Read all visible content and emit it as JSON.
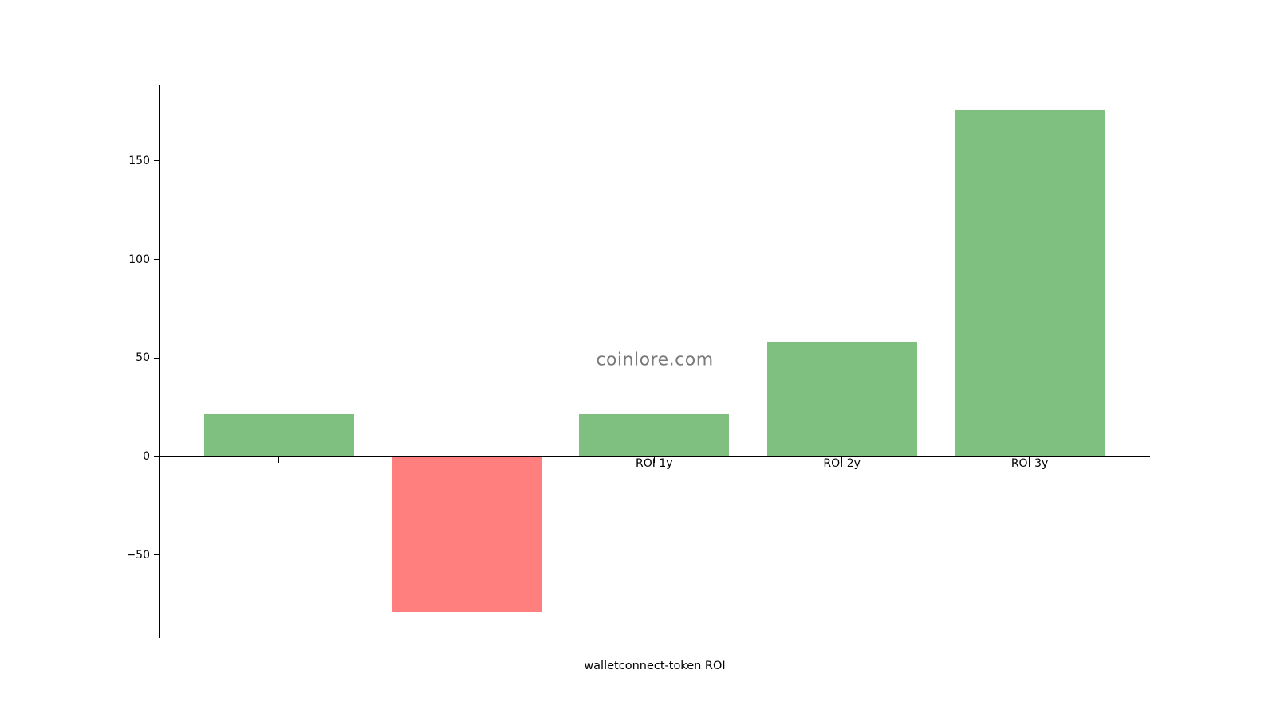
{
  "page": {
    "background": "#ffffff"
  },
  "watermark": {
    "text": "coinlore.com",
    "color": "#7a7a7a"
  },
  "chart_data": {
    "type": "bar",
    "title": "",
    "xlabel": "walletconnect-token ROI",
    "ylabel": "",
    "categories": [
      "",
      "",
      "ROI 1y",
      "ROI 2y",
      "ROI 3y"
    ],
    "values": [
      21.4,
      -78.6,
      21.4,
      58.1,
      175.8
    ],
    "positive_color": "#7fbf7f",
    "negative_color": "#ff7f7f",
    "axis_color": "#000000",
    "y_ticks": [
      150,
      100,
      50,
      0,
      -50
    ],
    "y_tick_labels": [
      "150",
      "100",
      "50",
      "0",
      "−50"
    ],
    "ylim": [
      -92,
      188.5
    ],
    "grid": false,
    "legend": "none",
    "bar_width_fraction": 0.8
  }
}
